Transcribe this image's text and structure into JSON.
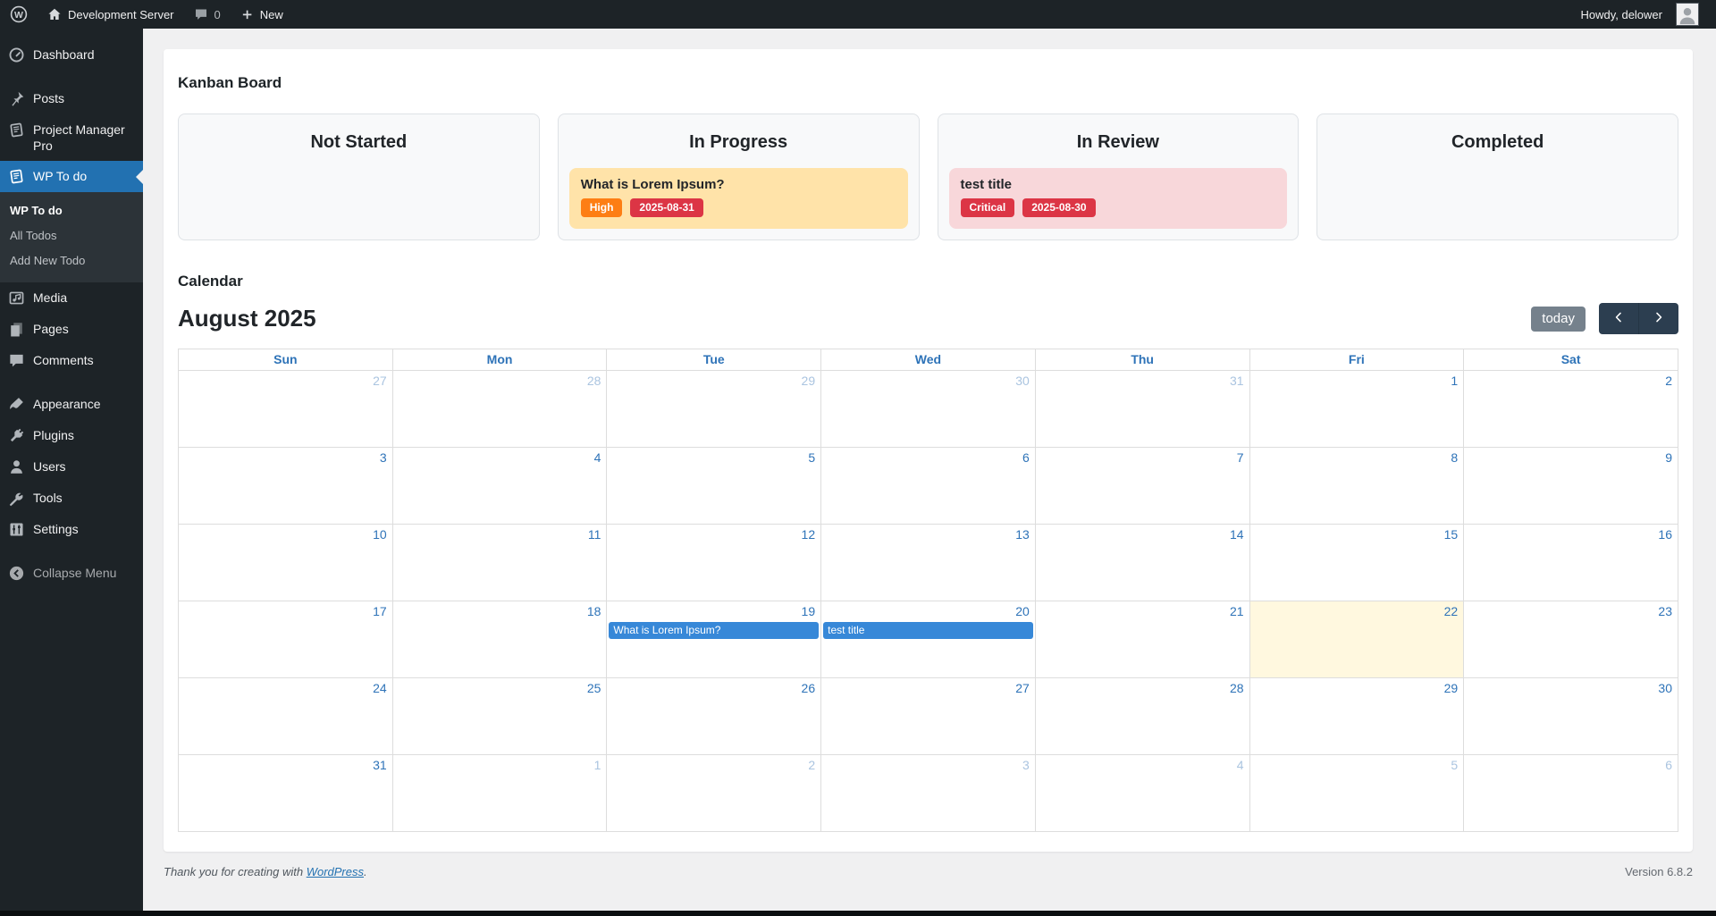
{
  "admin_bar": {
    "site_name": "Development Server",
    "comments_count": "0",
    "new_label": "New",
    "howdy": "Howdy, delower"
  },
  "sidebar": {
    "items": [
      {
        "label": "Dashboard",
        "icon": "dashboard-icon"
      },
      {
        "label": "Posts",
        "icon": "pushpin-icon",
        "separator_before": true
      },
      {
        "label": "Project Manager Pro",
        "icon": "clipboard-icon"
      },
      {
        "label": "WP To do",
        "icon": "clipboard-icon",
        "active": true,
        "has_submenu": true
      },
      {
        "label": "Media",
        "icon": "media-icon"
      },
      {
        "label": "Pages",
        "icon": "pages-icon"
      },
      {
        "label": "Comments",
        "icon": "comments-icon"
      },
      {
        "label": "Appearance",
        "icon": "brush-icon",
        "separator_before": true
      },
      {
        "label": "Plugins",
        "icon": "plugin-icon"
      },
      {
        "label": "Users",
        "icon": "user-icon"
      },
      {
        "label": "Tools",
        "icon": "wrench-icon"
      },
      {
        "label": "Settings",
        "icon": "settings-icon"
      },
      {
        "label": "Collapse Menu",
        "icon": "collapse-icon",
        "muted": true,
        "separator_before": true
      }
    ],
    "submenu": [
      {
        "label": "WP To do",
        "active": true
      },
      {
        "label": "All Todos"
      },
      {
        "label": "Add New Todo"
      }
    ]
  },
  "kanban": {
    "title": "Kanban Board",
    "columns": [
      {
        "title": "Not Started",
        "cards": []
      },
      {
        "title": "In Progress",
        "cards": [
          {
            "title": "What is Lorem Ipsum?",
            "priority": "High",
            "priority_color": "#fd7e14",
            "date": "2025-08-31",
            "date_color": "#dc3545",
            "bg": "#ffe3a9"
          }
        ]
      },
      {
        "title": "In Review",
        "cards": [
          {
            "title": "test title",
            "priority": "Critical",
            "priority_color": "#dc3545",
            "date": "2025-08-30",
            "date_color": "#dc3545",
            "bg": "#f8d7da"
          }
        ]
      },
      {
        "title": "Completed",
        "cards": []
      }
    ]
  },
  "calendar": {
    "title": "Calendar",
    "month_title": "August 2025",
    "today_label": "today",
    "day_headers": [
      "Sun",
      "Mon",
      "Tue",
      "Wed",
      "Thu",
      "Fri",
      "Sat"
    ],
    "weeks": [
      [
        {
          "day": "27",
          "faded": true
        },
        {
          "day": "28",
          "faded": true
        },
        {
          "day": "29",
          "faded": true
        },
        {
          "day": "30",
          "faded": true
        },
        {
          "day": "31",
          "faded": true
        },
        {
          "day": "1"
        },
        {
          "day": "2"
        }
      ],
      [
        {
          "day": "3"
        },
        {
          "day": "4"
        },
        {
          "day": "5"
        },
        {
          "day": "6"
        },
        {
          "day": "7"
        },
        {
          "day": "8"
        },
        {
          "day": "9"
        }
      ],
      [
        {
          "day": "10"
        },
        {
          "day": "11"
        },
        {
          "day": "12"
        },
        {
          "day": "13"
        },
        {
          "day": "14"
        },
        {
          "day": "15"
        },
        {
          "day": "16"
        }
      ],
      [
        {
          "day": "17"
        },
        {
          "day": "18"
        },
        {
          "day": "19",
          "events": [
            "What is Lorem Ipsum?"
          ]
        },
        {
          "day": "20",
          "events": [
            "test title"
          ]
        },
        {
          "day": "21"
        },
        {
          "day": "22",
          "today": true
        },
        {
          "day": "23"
        }
      ],
      [
        {
          "day": "24"
        },
        {
          "day": "25"
        },
        {
          "day": "26"
        },
        {
          "day": "27"
        },
        {
          "day": "28"
        },
        {
          "day": "29"
        },
        {
          "day": "30"
        }
      ],
      [
        {
          "day": "31"
        },
        {
          "day": "1",
          "faded": true
        },
        {
          "day": "2",
          "faded": true
        },
        {
          "day": "3",
          "faded": true
        },
        {
          "day": "4",
          "faded": true
        },
        {
          "day": "5",
          "faded": true
        },
        {
          "day": "6",
          "faded": true
        }
      ]
    ]
  },
  "footer": {
    "thanks_prefix": "Thank you for creating with ",
    "link": "WordPress",
    "suffix": ".",
    "version": "Version 6.8.2"
  },
  "colors": {
    "accent": "#2271b1",
    "admin_dark": "#1d2327",
    "submenu_bg": "#2c3338",
    "event": "#3788d8",
    "nav_button": "#2c3e50",
    "today_cell_bg": "#fff8df",
    "day_link": "#2e73b8",
    "day_link_faded": "#aac4e0",
    "high_badge": "#fd7e14",
    "critical_badge": "#dc3545"
  }
}
